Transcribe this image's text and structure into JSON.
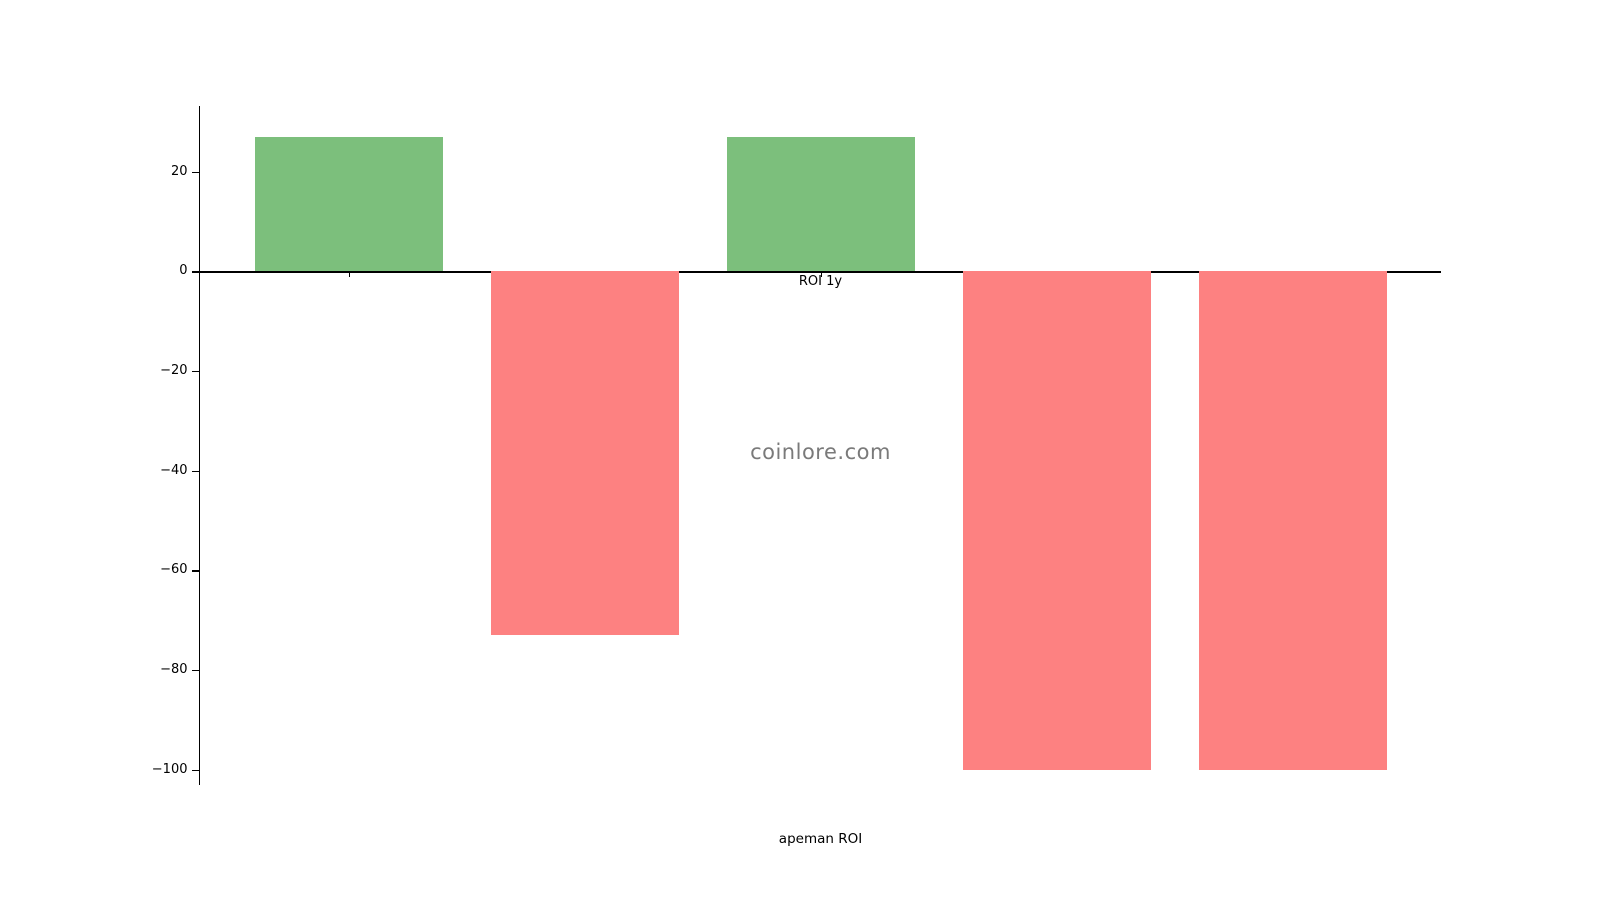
{
  "chart_data": {
    "type": "bar",
    "title": "",
    "xlabel": "apeman ROI",
    "ylabel": "",
    "watermark": "coinlore.com",
    "categories": [
      "",
      "",
      "ROI 1y",
      "",
      ""
    ],
    "values": [
      27,
      -73,
      27,
      -100,
      -100
    ],
    "bar_colors": [
      "#7cbf7c",
      "#fd8181",
      "#7cbf7c",
      "#fd8181",
      "#fd8181"
    ],
    "positive_color": "#7cbf7c",
    "negative_color": "#fd8181",
    "yticks": [
      20,
      0,
      -20,
      -40,
      -60,
      -80,
      -100
    ],
    "ytick_labels": [
      "20",
      "0",
      "−20",
      "−40",
      "−60",
      "−80",
      "−100"
    ],
    "ylim": [
      -103.1,
      33.2
    ],
    "grid": false,
    "legend_position": "none",
    "axis_color": "#000000",
    "watermark_color": "#7a7a7a"
  }
}
